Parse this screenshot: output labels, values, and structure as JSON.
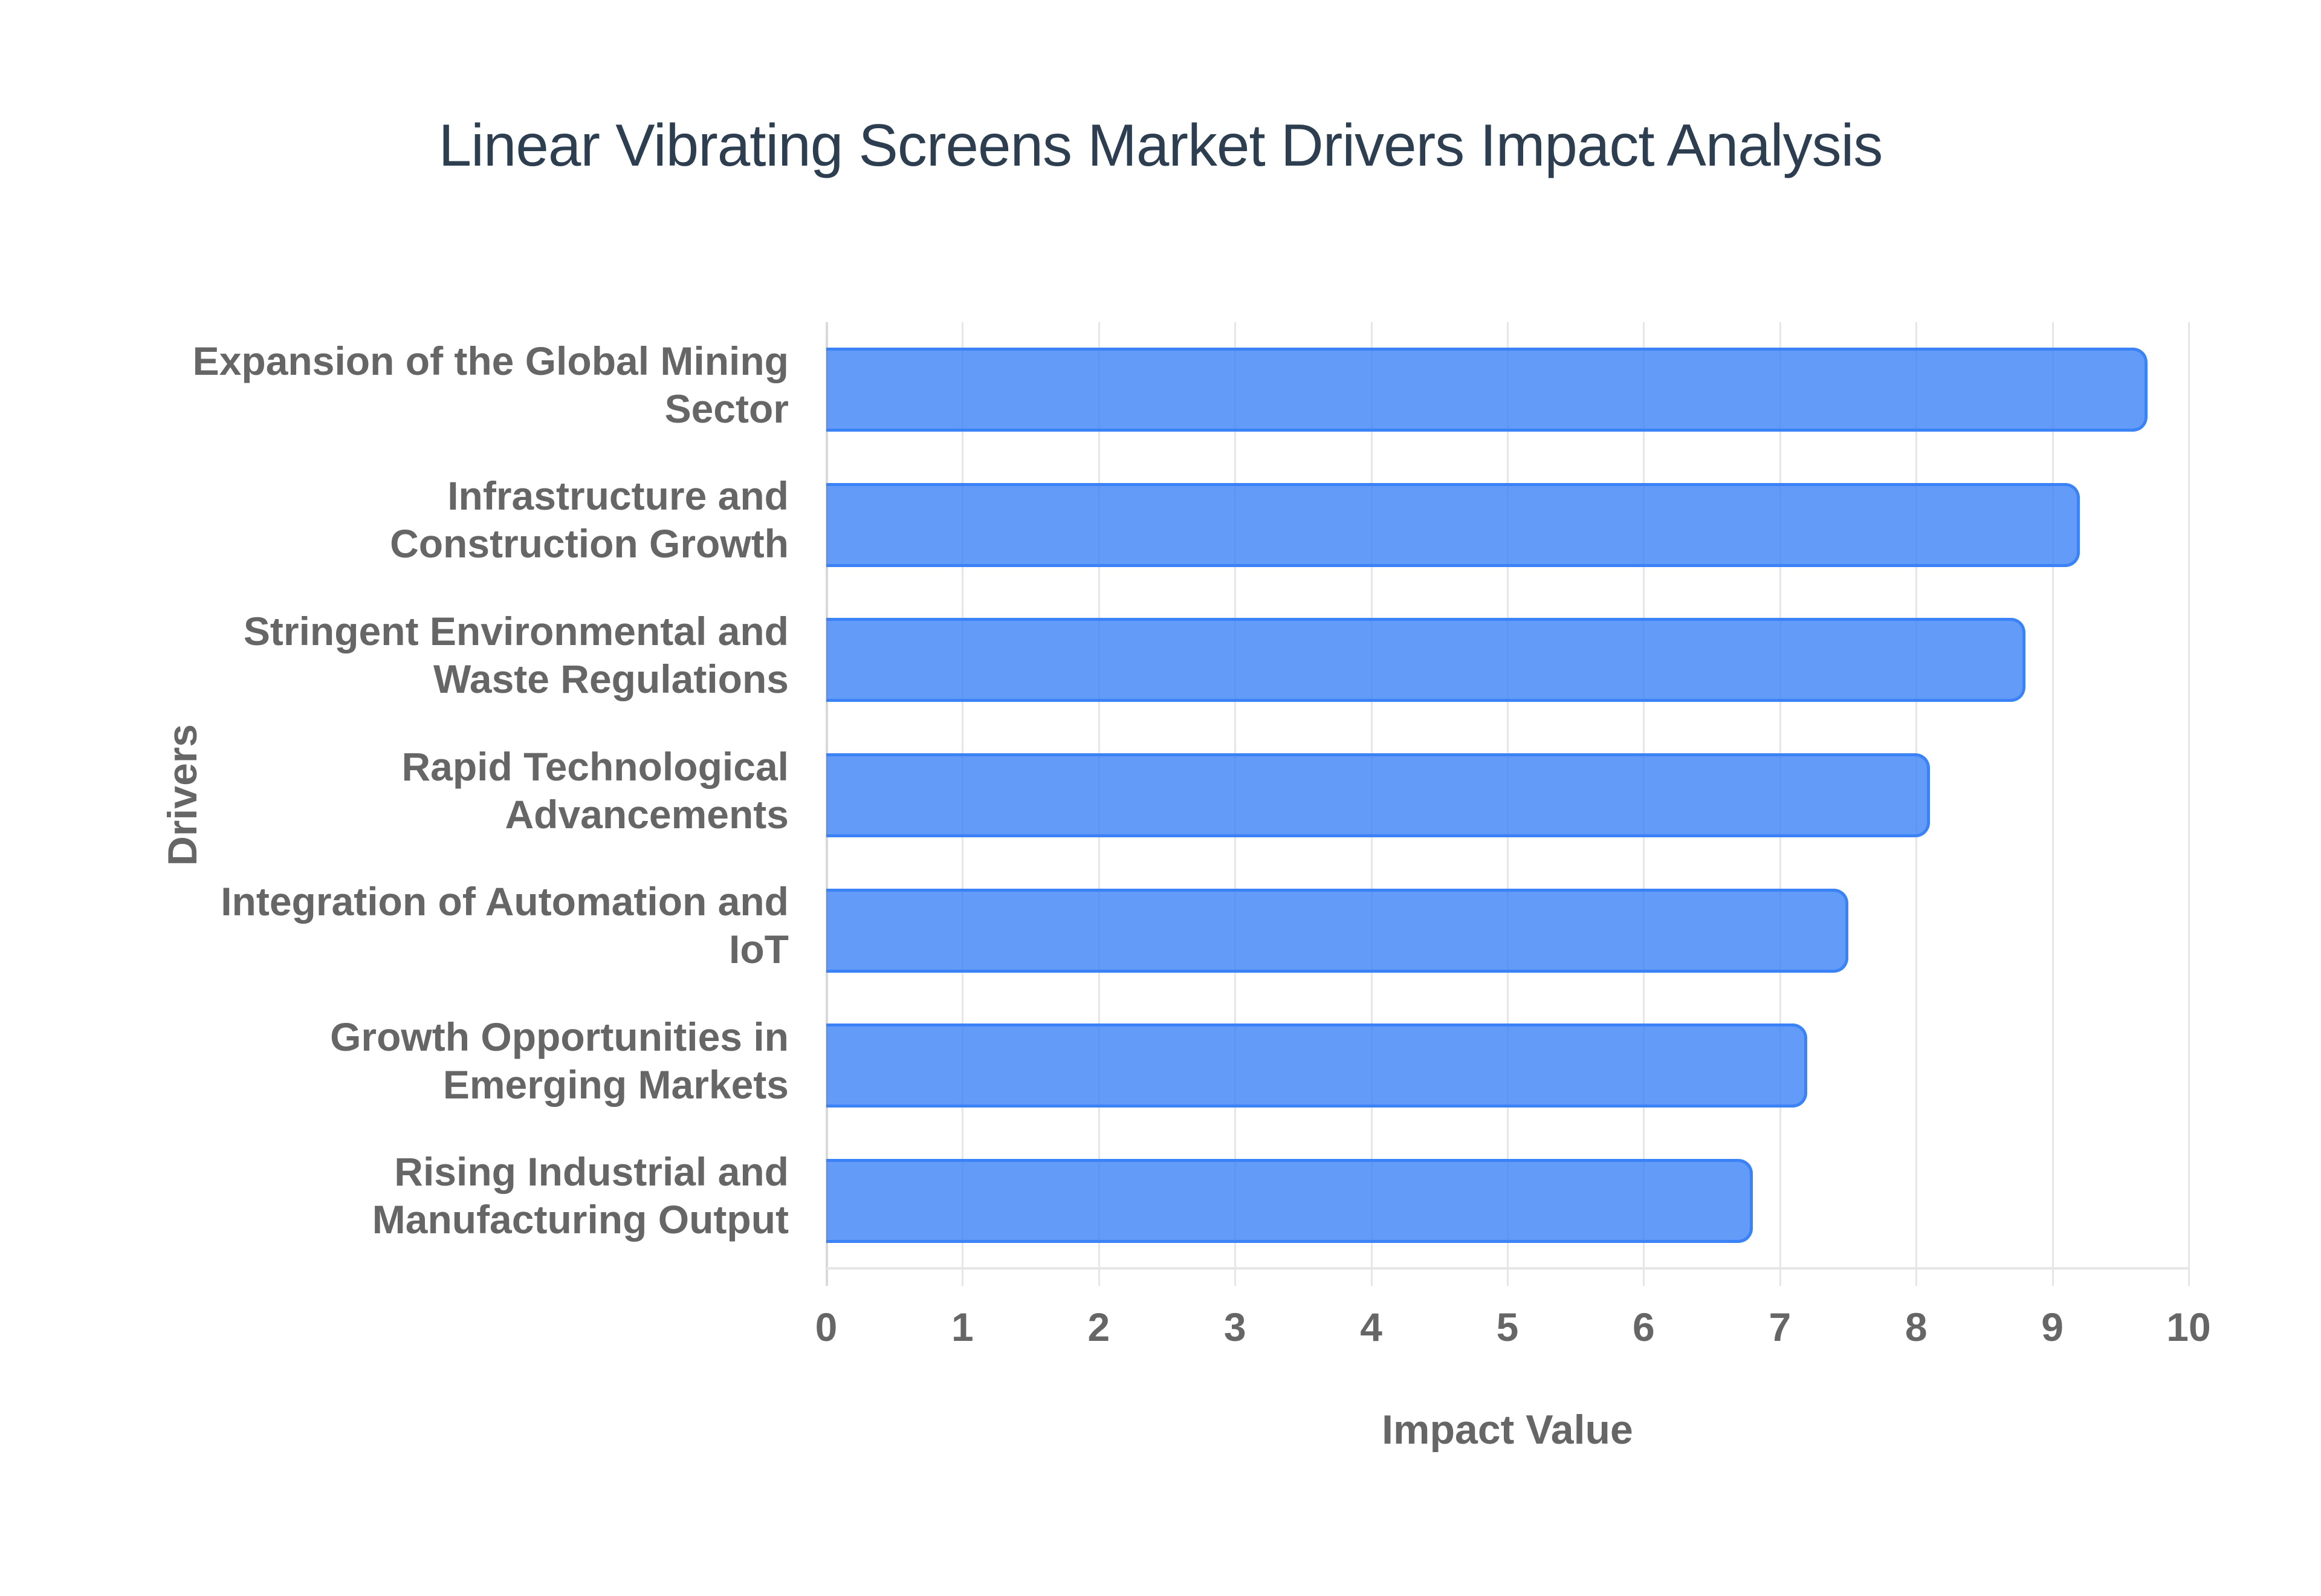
{
  "chart": {
    "title": "Linear Vibrating Screens Market Drivers Impact Analysis",
    "xlabel": "Impact Value",
    "ylabel": "Drivers"
  },
  "colors": {
    "title": "#2c3e50",
    "axis_text": "#666666",
    "bar_fill": "rgba(59,130,246,0.8)",
    "bar_border": "#3b82f6",
    "grid": "#e6e6e6"
  },
  "chart_data": {
    "type": "bar",
    "orientation": "horizontal",
    "title": "Linear Vibrating Screens Market Drivers Impact Analysis",
    "xlabel": "Impact Value",
    "ylabel": "Drivers",
    "xlim": [
      0,
      10
    ],
    "x_ticks": [
      "0",
      "1",
      "2",
      "3",
      "4",
      "5",
      "6",
      "7",
      "8",
      "9",
      "10"
    ],
    "grid": true,
    "legend": null,
    "categories": [
      "Expansion of the Global Mining\nSector",
      "Infrastructure and\nConstruction Growth",
      "Stringent Environmental and\nWaste Regulations",
      "Rapid Technological\nAdvancements",
      "Integration of Automation and\nIoT",
      "Growth Opportunities in\nEmerging Markets",
      "Rising Industrial and\nManufacturing Output"
    ],
    "values": [
      9.7,
      9.2,
      8.8,
      8.1,
      7.5,
      7.2,
      6.8
    ]
  }
}
